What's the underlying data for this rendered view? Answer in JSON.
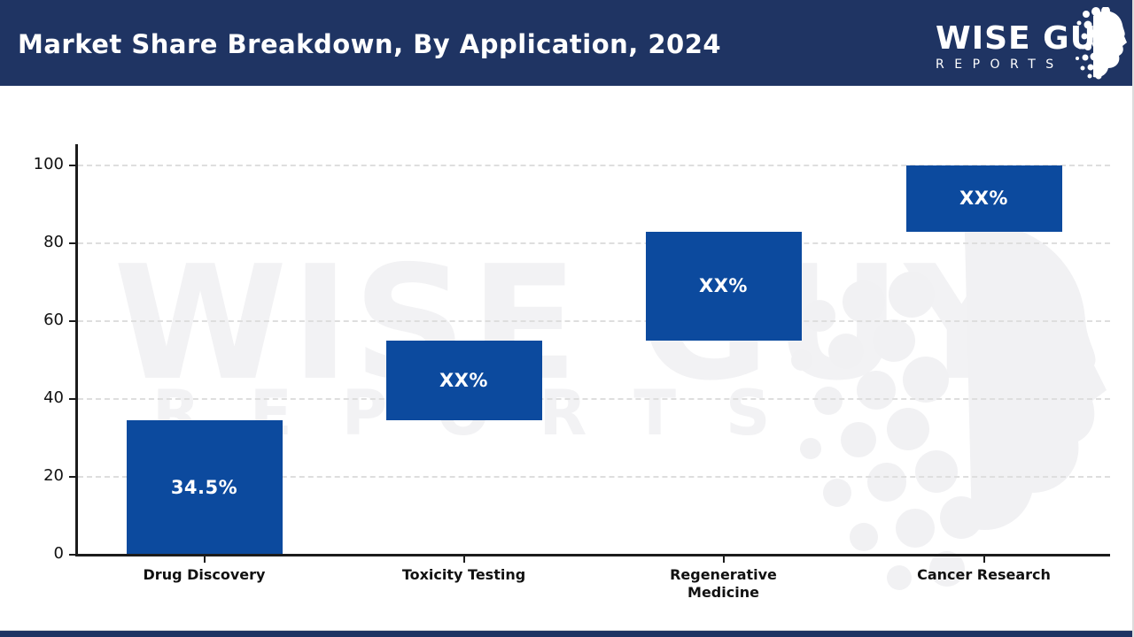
{
  "header": {
    "title": "Market Share Breakdown, By Application, 2024"
  },
  "logo": {
    "line1": "WISE GUY",
    "line2": "REPORTS"
  },
  "watermark": {
    "line1": "WISE GUY",
    "line2": "REPORTS"
  },
  "colors": {
    "header_bg": "#1f3463",
    "bar": "#0c4a9e",
    "axis": "#1c1c1c",
    "gridline": "#dedede",
    "watermark": "#f2f2f4",
    "value_label": "#ffffff"
  },
  "chart_data": {
    "type": "bar",
    "variant": "waterfall",
    "title": "Market Share Breakdown, By Application, 2024",
    "categories": [
      "Drug Discovery",
      "Toxicity Testing",
      "Regenerative Medicine",
      "Cancer Research"
    ],
    "bars": [
      {
        "category": "Drug Discovery",
        "start": 0,
        "end": 34.5,
        "label": "34.5%"
      },
      {
        "category": "Toxicity Testing",
        "start": 34.5,
        "end": 55,
        "label": "XX%"
      },
      {
        "category": "Regenerative Medicine",
        "start": 55,
        "end": 83,
        "label": "XX%"
      },
      {
        "category": "Cancer Research",
        "start": 83,
        "end": 100,
        "label": "XX%"
      }
    ],
    "xlabel": "",
    "ylabel": "",
    "ylim": [
      0,
      105
    ],
    "yticks": [
      0,
      20,
      40,
      60,
      80,
      100
    ],
    "grid": "horizontal-dashed",
    "legend": "none",
    "bar_color": "#0c4a9e"
  }
}
